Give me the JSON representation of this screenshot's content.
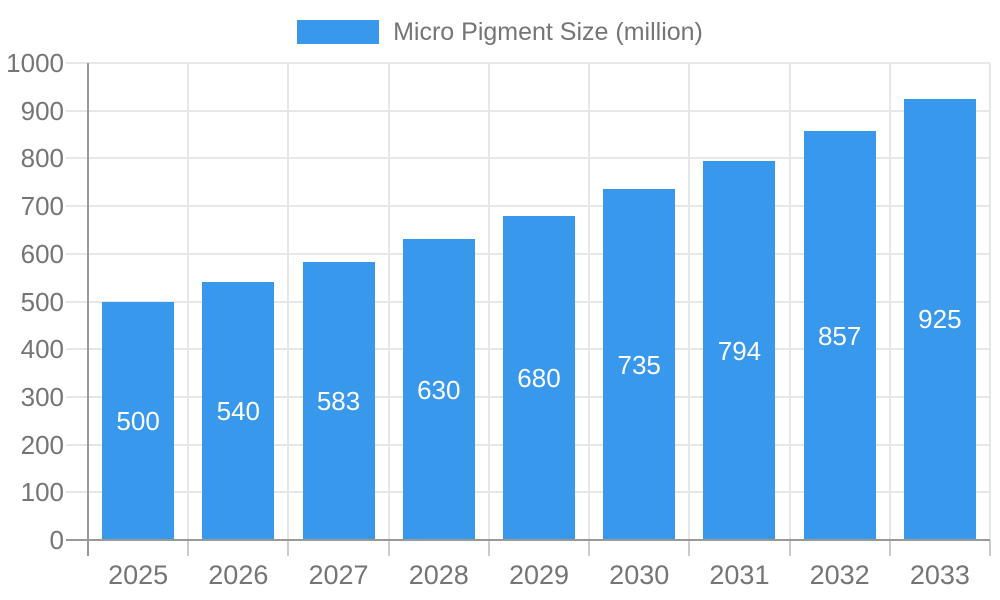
{
  "chart_data": {
    "type": "bar",
    "title": "Micro Pigment Size (million)",
    "legend": "Micro Pigment Size (million)",
    "legend_position": "top-center",
    "categories": [
      "2025",
      "2026",
      "2027",
      "2028",
      "2029",
      "2030",
      "2031",
      "2032",
      "2033"
    ],
    "values": [
      500,
      540,
      583,
      630,
      680,
      735,
      794,
      857,
      925
    ],
    "xlabel": "",
    "ylabel": "",
    "ylim": [
      0,
      1000
    ],
    "ytick_step": 100,
    "ytick_labels": [
      "0",
      "100",
      "200",
      "300",
      "400",
      "500",
      "600",
      "700",
      "800",
      "900",
      "1000"
    ],
    "grid": true,
    "value_labels_inside_bars": true,
    "colors": {
      "bar": "#3898EC",
      "value_label": "#FFFFFF",
      "axis_line": "#999999",
      "gridline": "#E7E7E7",
      "tick": "#CCCCCC",
      "text": "#757575",
      "background": "#FFFFFF"
    }
  }
}
